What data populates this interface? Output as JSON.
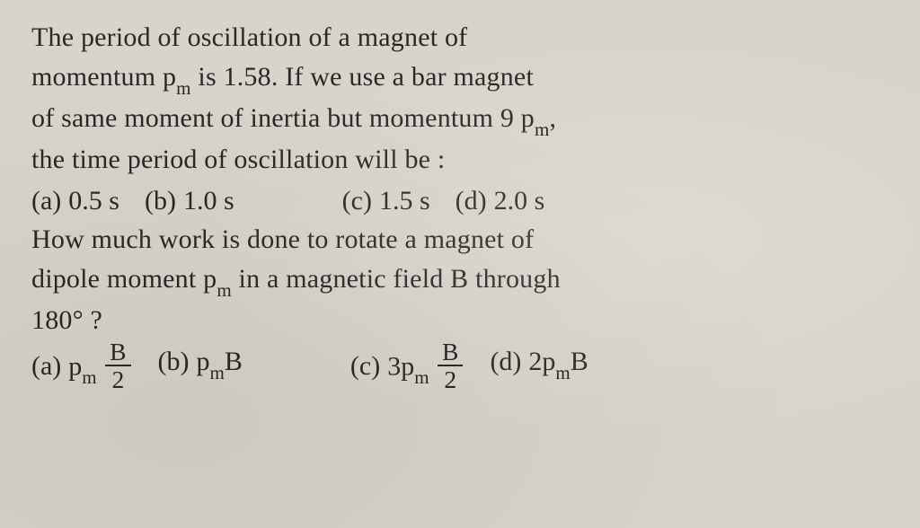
{
  "q1": {
    "text_parts": {
      "p1": "The period of oscillation of a magnet of",
      "p2a": "momentum p",
      "p2_sub": "m",
      "p2b": " is 1.58. If we use a bar magnet",
      "p3a": "of same moment of inertia but momentum 9 p",
      "p3_sub": "m",
      "p3b": ",",
      "p4": "the time period of oscillation will be :"
    },
    "options": {
      "a": {
        "label": "(a)",
        "value": "0.5 s"
      },
      "b": {
        "label": "(b)",
        "value": "1.0 s"
      },
      "c": {
        "label": "(c)",
        "value": "1.5 s"
      },
      "d": {
        "label": "(d)",
        "value": "2.0 s"
      }
    }
  },
  "q2": {
    "text_parts": {
      "p1": "How much work is done to rotate a magnet of",
      "p2a": "dipole moment p",
      "p2_sub": "m",
      "p2b": " in a magnetic field B through",
      "p3": "180° ?"
    },
    "options": {
      "a": {
        "label": "(a)",
        "pre": "p",
        "pre_sub": "m",
        "frac_num": "B",
        "frac_den": "2"
      },
      "b": {
        "label": "(b)",
        "pre": "p",
        "pre_sub": "m",
        "post": "B"
      },
      "c": {
        "label": "(c)",
        "pre": "3p",
        "pre_sub": "m",
        "frac_num": "B",
        "frac_den": "2"
      },
      "d": {
        "label": "(d)",
        "pre": "2p",
        "pre_sub": "m",
        "post": "B"
      }
    }
  },
  "style": {
    "background": "#d8d4cb",
    "text_color": "#2a2826",
    "fontsize_body": 30,
    "font_family": "Georgia, Times New Roman, serif"
  }
}
